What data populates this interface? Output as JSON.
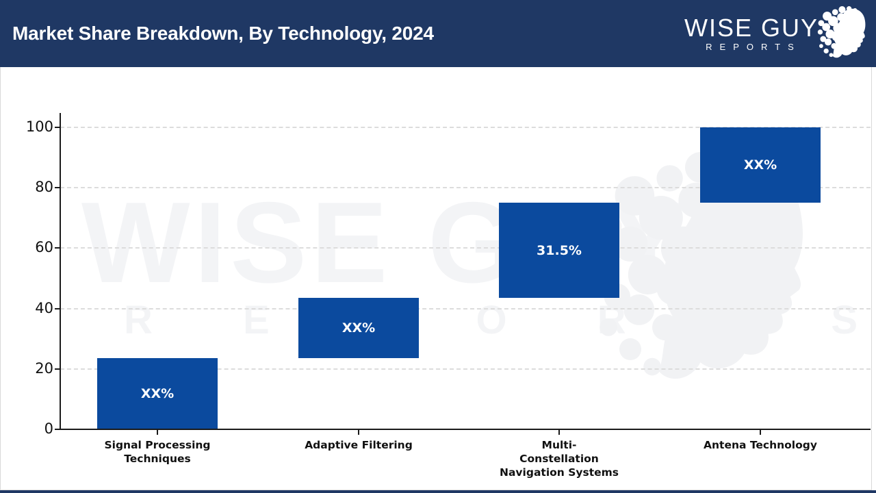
{
  "header": {
    "title": "Market Share Breakdown, By Technology, 2024",
    "brand": {
      "name": "WISE GUY",
      "sub": "REPORTS"
    }
  },
  "watermark": {
    "word": "WISE GUY",
    "sub": "R E P O R T S"
  },
  "chart_data": {
    "type": "bar",
    "subtype": "floating-waterfall",
    "title": "Market Share Breakdown, By Technology, 2024",
    "xlabel": "",
    "ylabel": "",
    "categories": [
      "Signal Processing\nTechniques",
      "Adaptive Filtering",
      "Multi-\nConstellation\nNavigation Systems",
      "Antena Technology"
    ],
    "bars": [
      {
        "category": "Signal Processing Techniques",
        "start": 0,
        "end": 23.5,
        "label": "XX%"
      },
      {
        "category": "Adaptive Filtering",
        "start": 23.5,
        "end": 43.5,
        "label": "XX%"
      },
      {
        "category": "Multi-Constellation Navigation Systems",
        "start": 43.5,
        "end": 75,
        "label": "31.5%"
      },
      {
        "category": "Antena Technology",
        "start": 75,
        "end": 100,
        "label": "XX%"
      }
    ],
    "yticks": [
      0,
      20,
      40,
      60,
      80,
      100
    ],
    "ylim": [
      0,
      105
    ],
    "grid": true,
    "legend_position": "none",
    "bar_color": "#0b4a9e",
    "bar_label_color": "#ffffff",
    "header_color": "#1f3864",
    "grid_color": "#dcdcdc",
    "axis_color": "#1a1a1a"
  }
}
